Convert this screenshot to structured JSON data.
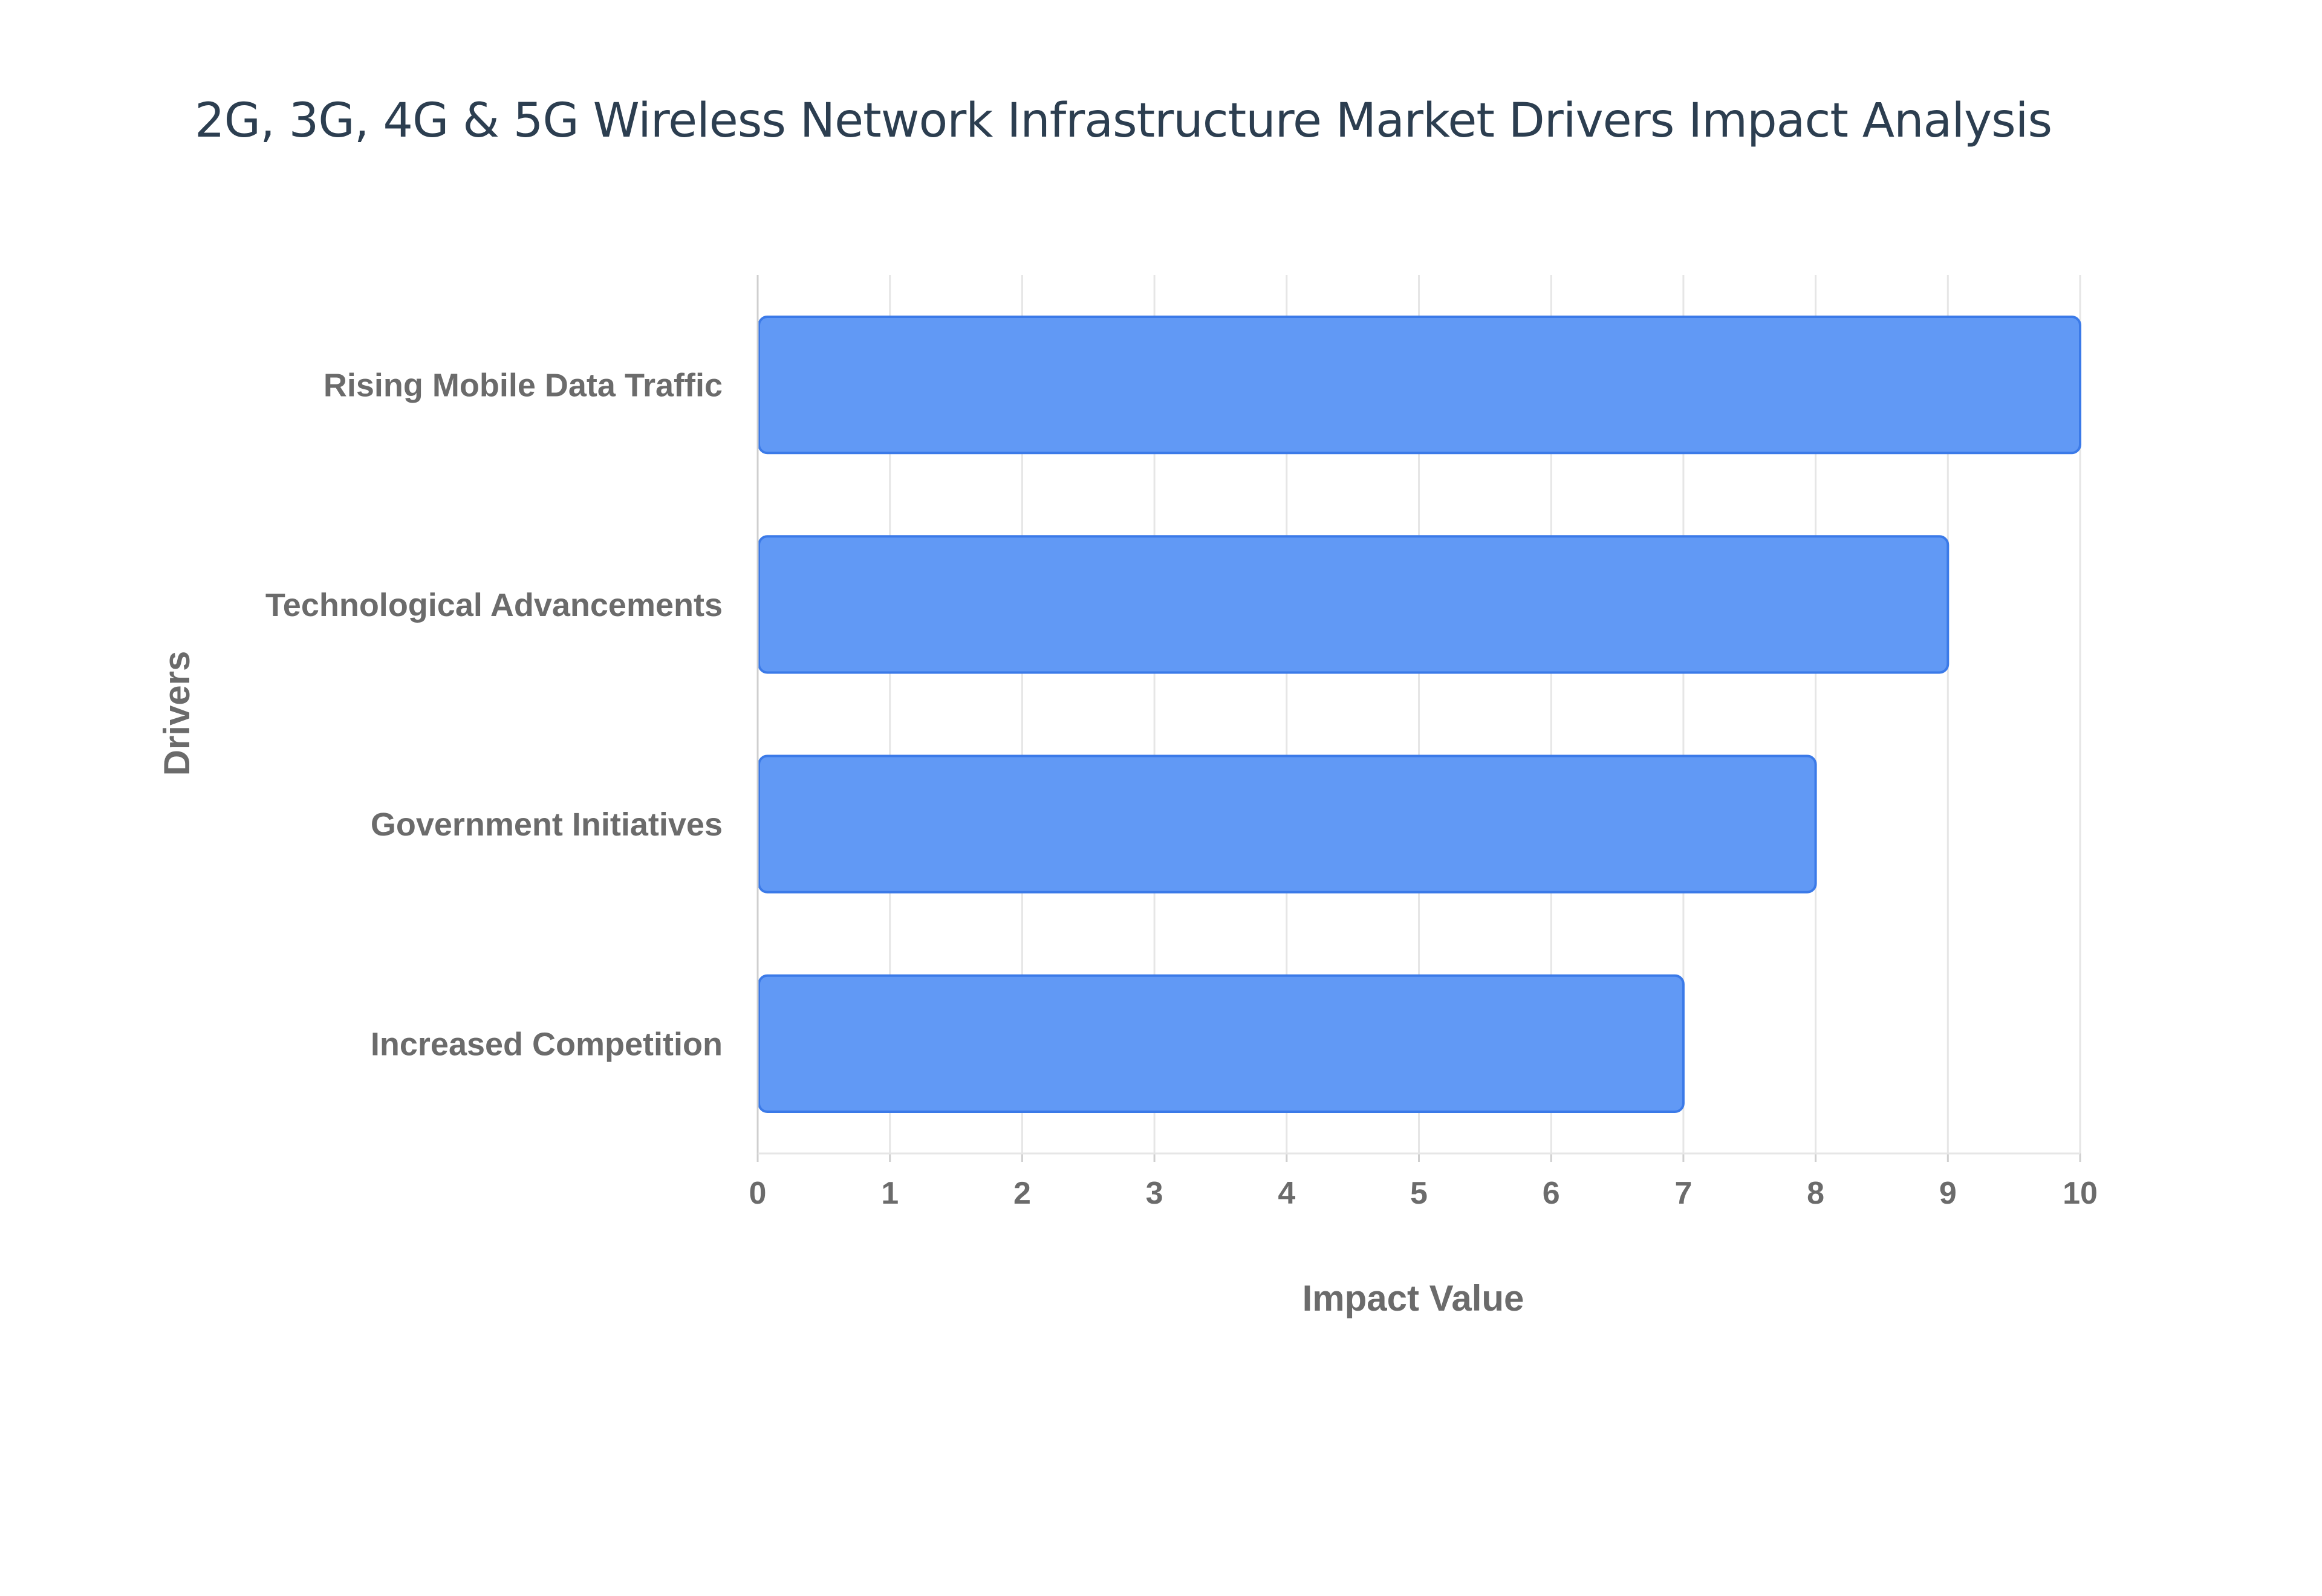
{
  "chart_data": {
    "type": "bar",
    "orientation": "horizontal",
    "title": "2G, 3G, 4G & 5G Wireless Network Infrastructure Market Drivers Impact Analysis",
    "xlabel": "Impact Value",
    "ylabel": "Drivers",
    "categories": [
      "Rising Mobile Data Traffic",
      "Technological Advancements",
      "Government Initiatives",
      "Increased Competition"
    ],
    "values": [
      10,
      9,
      8,
      7
    ],
    "xlim": [
      0,
      10
    ],
    "xticks": [
      "0",
      "1",
      "2",
      "3",
      "4",
      "5",
      "6",
      "7",
      "8",
      "9",
      "10"
    ],
    "grid": true,
    "legend": "none",
    "colors": {
      "bar_fill": "#6199f5",
      "bar_stroke": "#3b7ae8",
      "grid": "#e6e6e6",
      "axis": "#cfcfcf",
      "text": "#6b6b6b",
      "title": "#2c3e50"
    }
  }
}
